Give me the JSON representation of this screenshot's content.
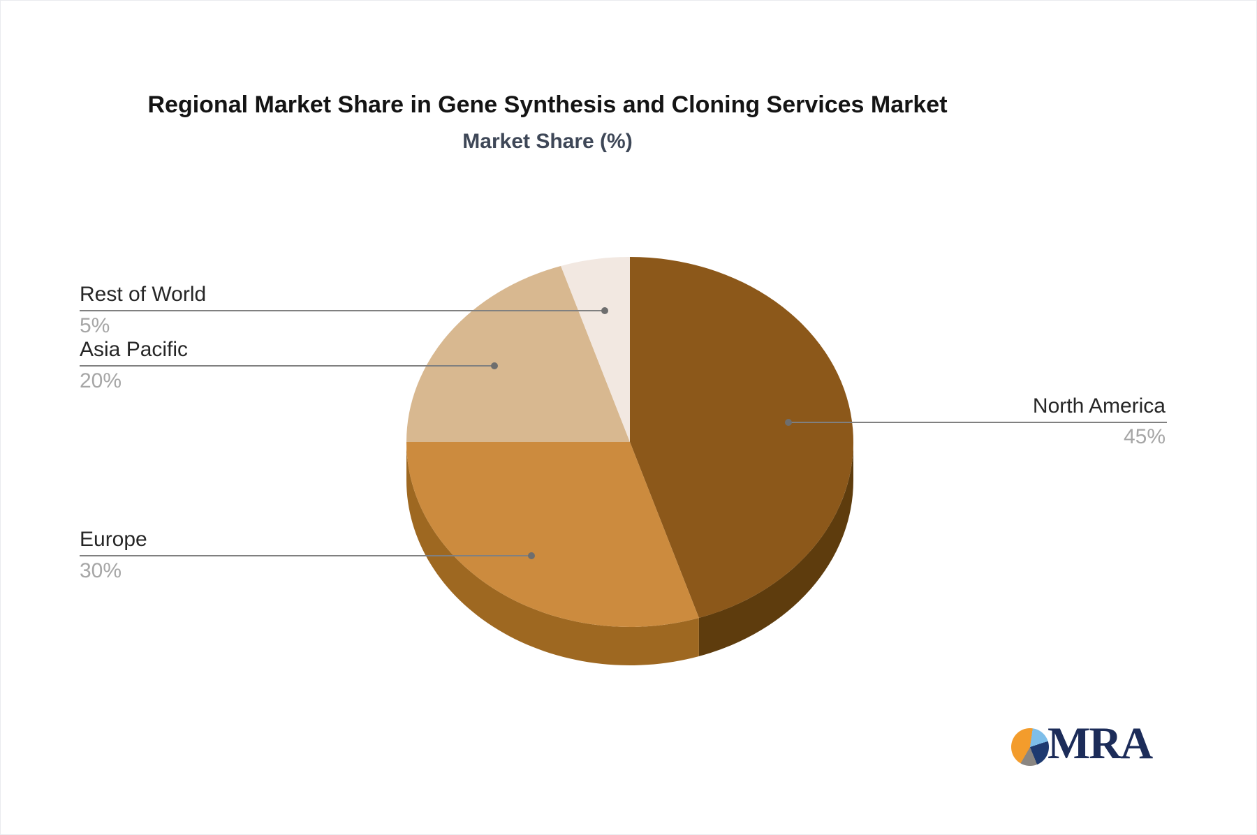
{
  "header": {
    "title": "Regional Market Share in Gene Synthesis and Cloning Services Market",
    "subtitle": "Market Share (%)"
  },
  "chart_data": {
    "type": "pie",
    "style": "3d",
    "title": "Regional Market Share in Gene Synthesis and Cloning Services Market",
    "subtitle": "Market Share (%)",
    "unit": "%",
    "categories": [
      "North America",
      "Europe",
      "Asia Pacific",
      "Rest of World"
    ],
    "values": [
      45,
      30,
      20,
      5
    ],
    "value_labels": [
      "45%",
      "30%",
      "20%",
      "5%"
    ],
    "colors": [
      "#8c581a",
      "#cc8b3e",
      "#d8b890",
      "#f2e8e1"
    ],
    "side_colors": [
      "#5e3c0d",
      "#9e6821",
      "#b39468",
      "#c8bcb2"
    ],
    "start_angle_deg": 0,
    "direction": "clockwise",
    "legend": "none",
    "label_style": "callouts-with-leader-lines",
    "callout_label_color": "#262626",
    "callout_value_color": "#a6a6a6",
    "leader_line_color": "#808080"
  },
  "callouts": [
    {
      "label": "North America",
      "value": "45%"
    },
    {
      "label": "Europe",
      "value": "30%"
    },
    {
      "label": "Asia Pacific",
      "value": "20%"
    },
    {
      "label": "Rest of World",
      "value": "5%"
    }
  ],
  "logo": {
    "text": "MRA"
  }
}
